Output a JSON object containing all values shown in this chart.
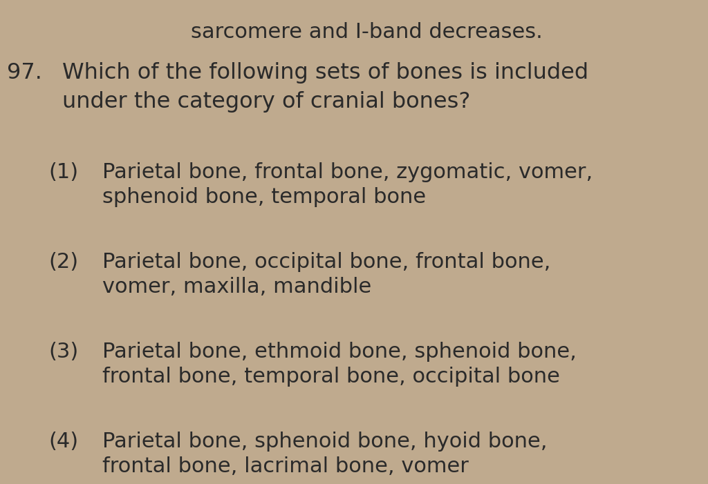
{
  "background_color": "#bfaa8e",
  "text_color": "#2a2a2a",
  "header_line": "sarcomere and I-band decreases.",
  "question_number": "97.",
  "question_line1": "Which of the following sets of bones is included",
  "question_line2": "under the category of cranial bones?",
  "options": [
    {
      "number": "(1)",
      "line1": "Parietal bone, frontal bone, zygomatic, vomer,",
      "line2": "sphenoid bone, temporal bone"
    },
    {
      "number": "(2)",
      "line1": "Parietal bone, occipital bone, frontal bone,",
      "line2": "vomer, maxilla, mandible"
    },
    {
      "number": "(3)",
      "line1": "Parietal bone, ethmoid bone, sphenoid bone,",
      "line2": "frontal bone, temporal bone, occipital bone"
    },
    {
      "number": "(4)",
      "line1": "Parietal bone, sphenoid bone, hyoid bone,",
      "line2": "frontal bone, lacrimal bone, vomer"
    }
  ],
  "fig_width": 10.24,
  "fig_height": 7.01,
  "dpi": 100
}
